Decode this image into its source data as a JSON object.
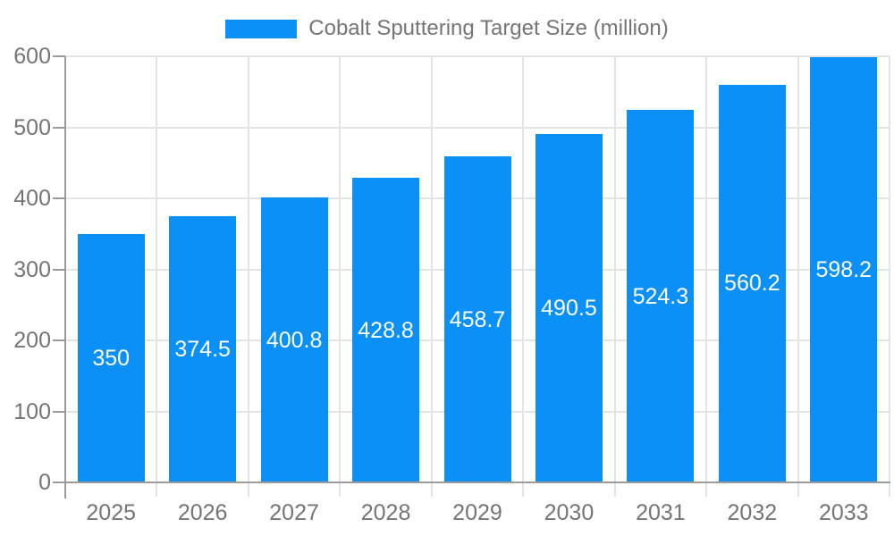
{
  "chart_data": {
    "type": "bar",
    "title": "Cobalt Sputtering Target Size (million)",
    "categories": [
      "2025",
      "2026",
      "2027",
      "2028",
      "2029",
      "2030",
      "2031",
      "2032",
      "2033"
    ],
    "series": [
      {
        "name": "Cobalt Sputtering Target Size (million)",
        "values": [
          350,
          374.5,
          400.8,
          428.8,
          458.7,
          490.5,
          524.3,
          560.2,
          598.2
        ]
      }
    ],
    "value_labels": [
      "350",
      "374.5",
      "400.8",
      "428.8",
      "458.7",
      "490.5",
      "524.3",
      "560.2",
      "598.2"
    ],
    "xlabel": "",
    "ylabel": "",
    "ylim": [
      0,
      600
    ],
    "yticks": [
      "0",
      "100",
      "200",
      "300",
      "400",
      "500",
      "600"
    ],
    "ytick_interval": 100,
    "grid": true,
    "legend_position": "top",
    "colors": {
      "bar": "#0b90f8",
      "axis_text": "#757575",
      "bar_label_text": "#ffffff",
      "gridline": "#e4e4e4",
      "axis_line": "#9b9b9b",
      "background": "#ffffff"
    }
  }
}
